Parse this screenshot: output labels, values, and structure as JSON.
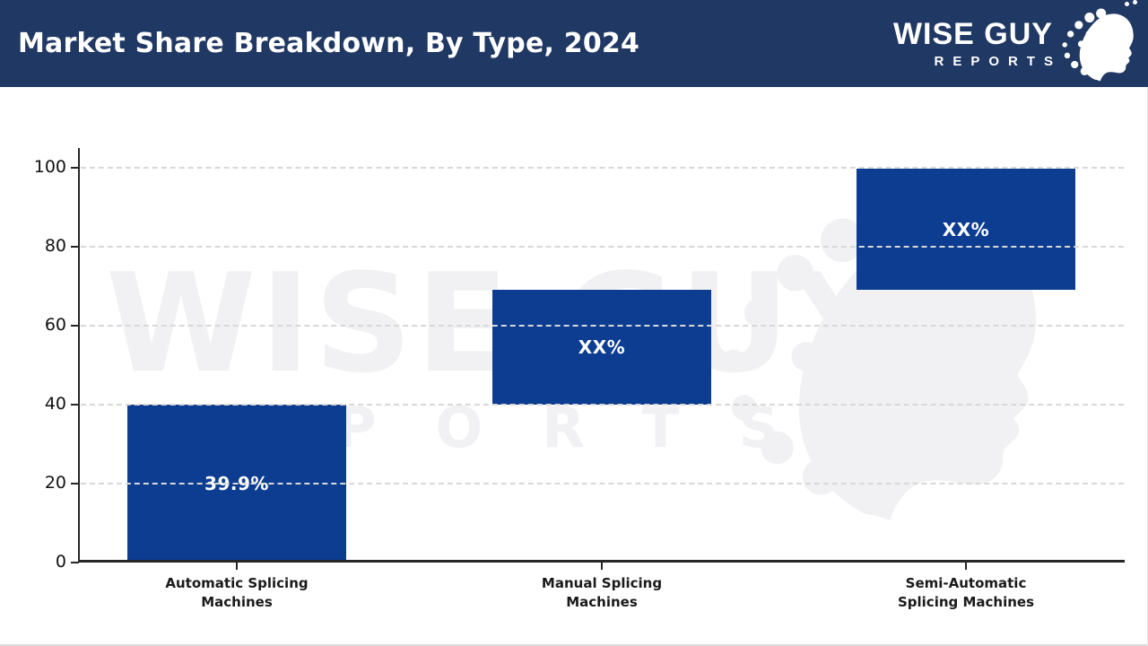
{
  "header": {
    "title": "Market Share Breakdown, By Type, 2024",
    "bg_color": "#203864",
    "logo": {
      "line1": "WISE GUY",
      "line2": "REPORTS",
      "icon": "face-profile-dots-icon"
    }
  },
  "watermark": {
    "line1": "WISE GUY",
    "line2": "REPORTS",
    "icon": "face-profile-dots-watermark",
    "color": "#f1f1f3"
  },
  "chart_data": {
    "type": "bar",
    "subtype": "floating-segment-waterfall",
    "title": "Market Share Breakdown, By Type, 2024",
    "categories": [
      "Automatic Splicing Machines",
      "Manual Splicing Machines",
      "Semi-Automatic Splicing Machines"
    ],
    "bars": [
      {
        "category": [
          "Automatic Splicing",
          "Machines"
        ],
        "from": 0,
        "to": 39.9,
        "label": "39.9%"
      },
      {
        "category": [
          "Manual Splicing",
          "Machines"
        ],
        "from": 40,
        "to": 69,
        "label": "XX%"
      },
      {
        "category": [
          "Semi-Automatic",
          "Splicing Machines"
        ],
        "from": 69,
        "to": 99.8,
        "label": "XX%"
      }
    ],
    "yticks": [
      0,
      20,
      40,
      60,
      80,
      100
    ],
    "ylim": [
      0,
      100
    ],
    "xlabel": "",
    "ylabel": "",
    "grid": "horizontal-dashed-over-bars",
    "legend": "none",
    "bar_color": "#0d3d91",
    "grid_color": "#d8d8d8",
    "axis_color": "#262626",
    "bar_label_color": "#ffffff"
  }
}
